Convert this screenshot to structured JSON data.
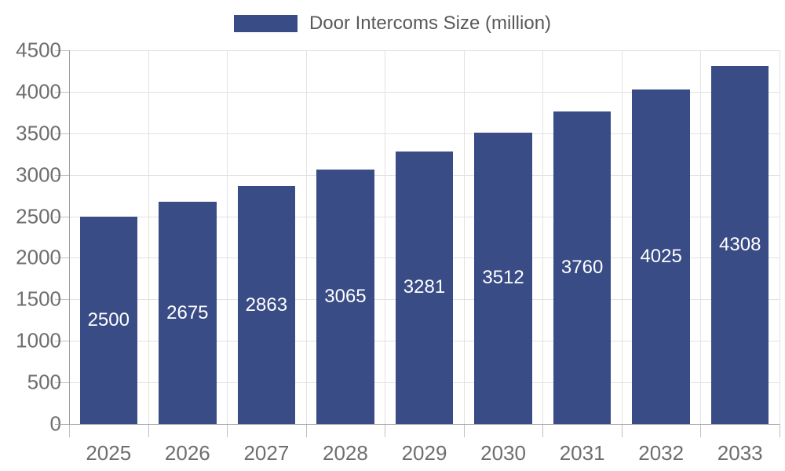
{
  "legend": {
    "label": "Door Intercoms Size (million)"
  },
  "chart_data": {
    "type": "bar",
    "title": "Door Intercoms Size (million)",
    "categories": [
      "2025",
      "2026",
      "2027",
      "2028",
      "2029",
      "2030",
      "2031",
      "2032",
      "2033"
    ],
    "values": [
      2500,
      2675,
      2863,
      3065,
      3281,
      3512,
      3760,
      4025,
      4308
    ],
    "xlabel": "",
    "ylabel": "",
    "ylim": [
      0,
      4500
    ],
    "ytick_step": 500,
    "ytick_labels": [
      "0",
      "500",
      "1000",
      "1500",
      "2000",
      "2500",
      "3000",
      "3500",
      "4000",
      "4500"
    ],
    "grid": true,
    "legend_position": "top-center",
    "value_labels": "centered-inside-bars",
    "colors": {
      "bar": "#3A4C86",
      "value_label": "#ffffff",
      "grid": "#e2e2e2",
      "axis": "#9b9b9b",
      "tick": "#c0c0c0",
      "tick_label": "#6e6e6e",
      "legend_text": "#595959",
      "background": "#ffffff"
    }
  }
}
